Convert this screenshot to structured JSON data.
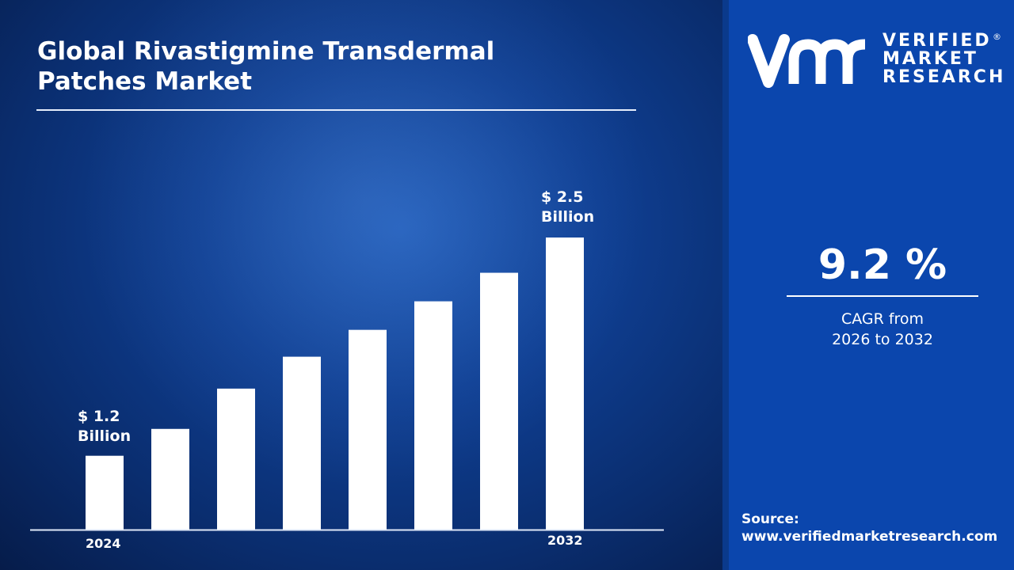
{
  "title": "Global Rivastigmine Transdermal Patches Market",
  "title_lines": [
    "Global Rivastigmine Transdermal",
    "Patches Market"
  ],
  "brand": {
    "lines": [
      "VERIFIED",
      "MARKET",
      "RESEARCH"
    ],
    "mark": "vmr",
    "registered": "®"
  },
  "cagr": {
    "value": "9.2 %",
    "desc_lines": [
      "CAGR from",
      "2026 to 2032"
    ]
  },
  "source": {
    "label": "Source:",
    "url": "www.verifiedmarketresearch.com"
  },
  "colors": {
    "background": "#0b46ad",
    "bars": "#ffffff",
    "text": "#ffffff"
  },
  "chart_data": {
    "type": "bar",
    "categories": [
      "2024",
      "",
      "",
      "",
      "",
      "",
      "",
      "2032"
    ],
    "values": [
      1.2,
      1.36,
      1.6,
      1.79,
      1.95,
      2.12,
      2.29,
      2.5
    ],
    "unit": "USD Billion",
    "data_labels": [
      {
        "index": 0,
        "lines": [
          "$ 1.2",
          "Billion"
        ]
      },
      {
        "index": 7,
        "lines": [
          "$ 2.5",
          "Billion"
        ]
      }
    ],
    "x_tick_labels": [
      "2024",
      "2032"
    ],
    "title": "",
    "xlabel": "",
    "ylabel": "",
    "ylim": [
      0.76,
      3.0
    ],
    "grid": false,
    "legend": "none"
  }
}
